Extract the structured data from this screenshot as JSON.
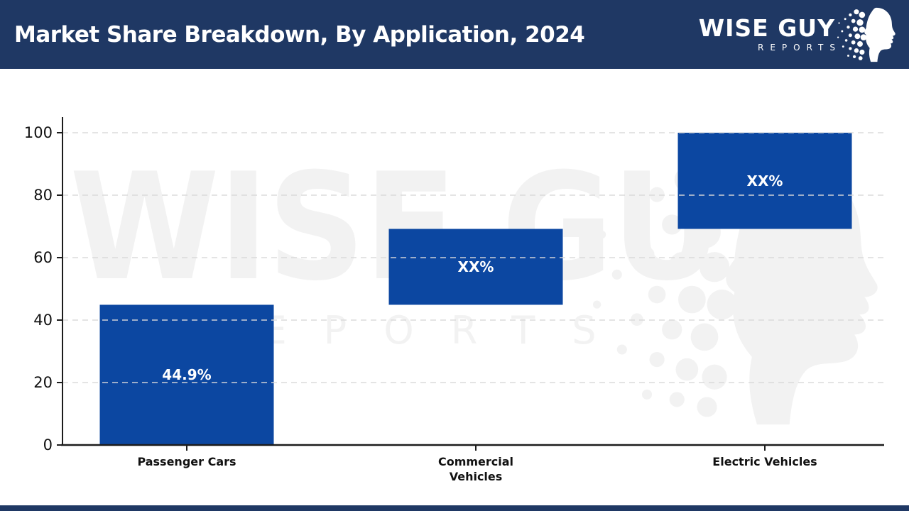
{
  "header": {
    "title": "Market Share Breakdown, By Application, 2024"
  },
  "logo": {
    "name": "WISE GUY",
    "tagline": "REPORTS"
  },
  "watermark": {
    "line1": "WISE GUY",
    "line2": "REPORTS"
  },
  "chart_data": {
    "type": "bar",
    "subtype": "floating-waterfall",
    "title": "Market Share Breakdown, By Application, 2024",
    "categories": [
      "Passenger Cars",
      "Commercial Vehicles",
      "Electric Vehicles"
    ],
    "category_label_lines": [
      [
        "Passenger Cars"
      ],
      [
        "Commercial",
        "Vehicles"
      ],
      [
        "Electric Vehicles"
      ]
    ],
    "segments": [
      {
        "category": "Passenger Cars",
        "start": 0,
        "end": 44.9,
        "label": "44.9%"
      },
      {
        "category": "Commercial Vehicles",
        "start": 44.9,
        "end": 69.2,
        "label": "XX%"
      },
      {
        "category": "Electric Vehicles",
        "start": 69.2,
        "end": 100,
        "label": "XX%"
      }
    ],
    "ylim": [
      0,
      105
    ],
    "yticks": [
      0,
      20,
      40,
      60,
      80,
      100
    ],
    "grid": "horizontal dashed, drawn above bars",
    "legend": "none",
    "bar_color": "#0c47a1",
    "bar_label_color": "#ffffff",
    "axis_color": "#1c1c1c",
    "grid_color": "#d9d9d9",
    "tick_label_color": "#111111",
    "background": "#ffffff"
  },
  "theme": {
    "header_bg": "#1f3864",
    "footer_bg": "#1f3864",
    "title_color": "#ffffff",
    "watermark_color": "#f2f2f2"
  }
}
